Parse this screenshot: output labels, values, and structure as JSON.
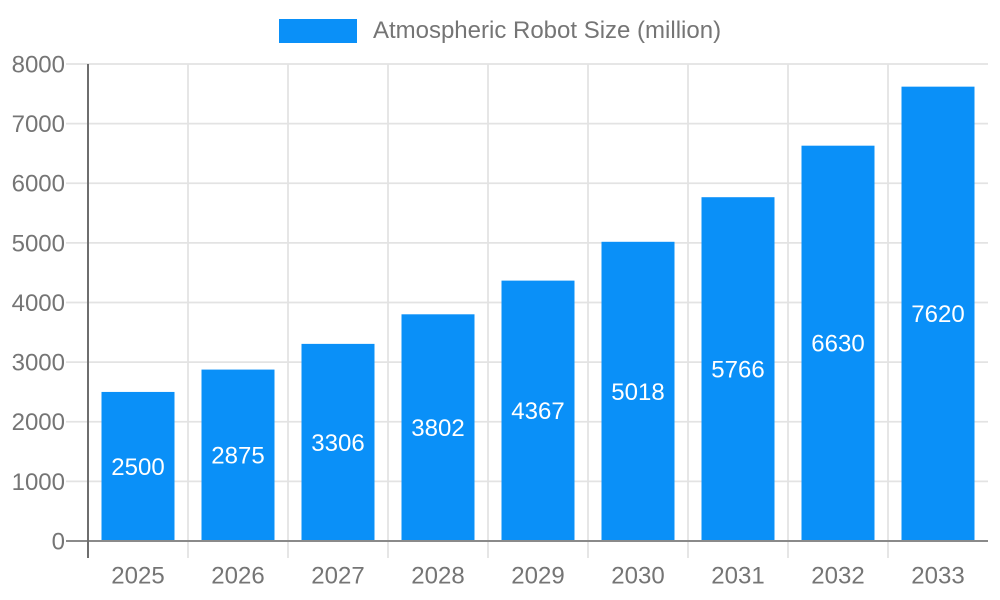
{
  "legend": {
    "label": "Atmospheric Robot Size (million)"
  },
  "theme": {
    "bar_color": "#0a90f8",
    "annotation_text_color": "#ffffff",
    "axis_text_color": "#757575",
    "legend_text_color": "#757575",
    "gridline_color": "#e3e3e3",
    "axis_line_color": "#6e6e6e",
    "baseline_color": "#8a8a8a",
    "background_color": "#ffffff"
  },
  "chart_data": {
    "type": "bar",
    "title": "Atmospheric Robot Size (million)",
    "categories": [
      "2025",
      "2026",
      "2027",
      "2028",
      "2029",
      "2030",
      "2031",
      "2032",
      "2033"
    ],
    "values": [
      2500,
      2875,
      3306,
      3802,
      4367,
      5018,
      5766,
      6630,
      7620
    ],
    "value_labels": [
      "2500",
      "2875",
      "3306",
      "3802",
      "4367",
      "5018",
      "5766",
      "6630",
      "7620"
    ],
    "ytick_labels": [
      "0",
      "1000",
      "2000",
      "3000",
      "4000",
      "5000",
      "6000",
      "7000",
      "8000"
    ],
    "yticks": [
      0,
      1000,
      2000,
      3000,
      4000,
      5000,
      6000,
      7000,
      8000
    ],
    "ylim": [
      0,
      8000
    ],
    "xlabel": "",
    "ylabel": "",
    "grid": true,
    "legend_position": "top",
    "annotations_inside_bars": true
  }
}
